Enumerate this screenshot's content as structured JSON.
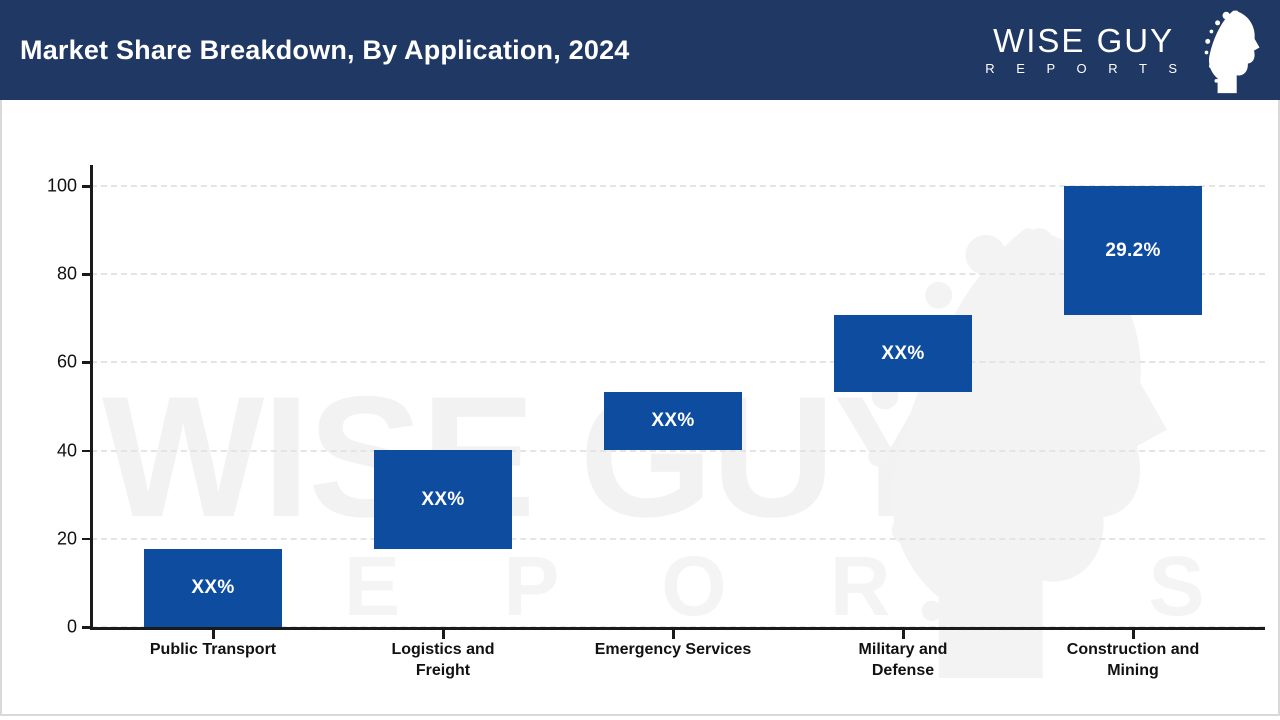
{
  "header": {
    "title": "Market Share Breakdown, By Application, 2024",
    "bg_color": "#1f3864",
    "logo": {
      "line1": "WISE GUY",
      "line2": "R E P O R T S"
    }
  },
  "watermark": {
    "line1": "WISE GUY",
    "line2": "R E P O R T S"
  },
  "chart_data": {
    "type": "bar",
    "subtype": "waterfall",
    "title": "Market Share Breakdown, By Application, 2024",
    "categories": [
      "Public Transport",
      "Logistics and\nFreight",
      "Emergency Services",
      "Military and\nDefense",
      "Construction and\nMining"
    ],
    "segments": [
      {
        "category": "Public Transport",
        "start": 0,
        "end": 17.7,
        "label": "XX%"
      },
      {
        "category": "Logistics and Freight",
        "start": 17.7,
        "end": 40.1,
        "label": "XX%"
      },
      {
        "category": "Emergency Services",
        "start": 40.1,
        "end": 53.2,
        "label": "XX%"
      },
      {
        "category": "Military and Defense",
        "start": 53.2,
        "end": 70.8,
        "label": "XX%"
      },
      {
        "category": "Construction and Mining",
        "start": 70.8,
        "end": 100,
        "label": "29.2%"
      }
    ],
    "yticks": [
      0,
      20,
      40,
      60,
      80,
      100
    ],
    "ylim": [
      0,
      104.8
    ],
    "bar_color": "#0d4c9f",
    "grid": "horizontal-dashed",
    "legend": "none",
    "xlabel": "",
    "ylabel": ""
  }
}
